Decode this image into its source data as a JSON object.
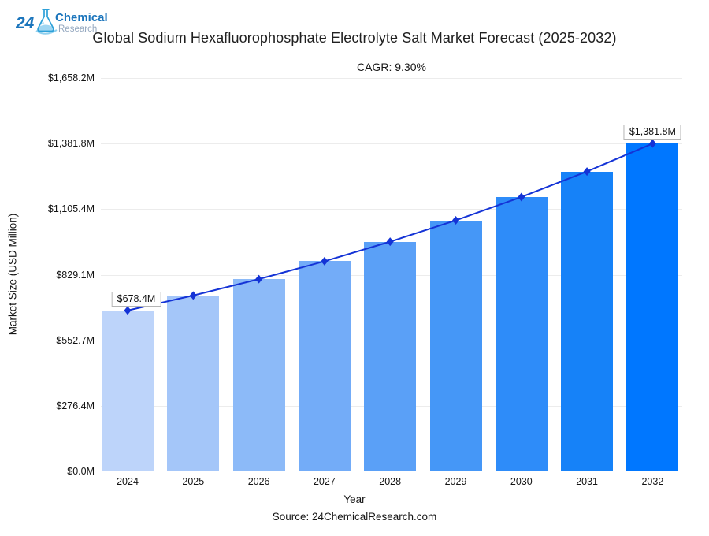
{
  "logo": {
    "number": "24",
    "line1": "Chemical",
    "line2": "Research",
    "primary_color": "#1b75bc",
    "secondary_color": "#93a7bf",
    "flask_color": "#2da0d8"
  },
  "chart_data": {
    "type": "bar",
    "title": "Global Sodium Hexafluorophosphate Electrolyte Salt Market Forecast (2025-2032)",
    "subtitle": "CAGR: 9.30%",
    "xlabel": "Year",
    "ylabel": "Market Size (USD Million)",
    "categories": [
      "2024",
      "2025",
      "2026",
      "2027",
      "2028",
      "2029",
      "2030",
      "2031",
      "2032"
    ],
    "values": [
      678.4,
      741.5,
      810.4,
      885.8,
      968.2,
      1058.2,
      1156.6,
      1264.2,
      1381.8
    ],
    "ylim": [
      0,
      1658.2
    ],
    "ytick_values": [
      0,
      276.4,
      552.7,
      829.1,
      1105.4,
      1381.8,
      1658.2
    ],
    "ytick_labels": [
      "$0.0M",
      "$276.4M",
      "$552.7M",
      "$829.1M",
      "$1,105.4M",
      "$1,381.8M",
      "$1,658.2M"
    ],
    "bar_colors": [
      "#bdd4fa",
      "#a4c6f9",
      "#8cbaf8",
      "#73acf8",
      "#5aa0f7",
      "#4597f7",
      "#2e8cf9",
      "#1682f8",
      "#0077ff"
    ],
    "line_color": "#1433d6",
    "line_marker": "diamond",
    "grid_color": "#ececec",
    "grid": true,
    "legend_position": "none",
    "annotations": [
      {
        "index": 0,
        "text": "$678.4M",
        "dx": 11
      },
      {
        "index": 8,
        "text": "$1,381.8M",
        "dx": 0
      }
    ]
  },
  "footer": {
    "source": "Source: 24ChemicalResearch.com"
  }
}
